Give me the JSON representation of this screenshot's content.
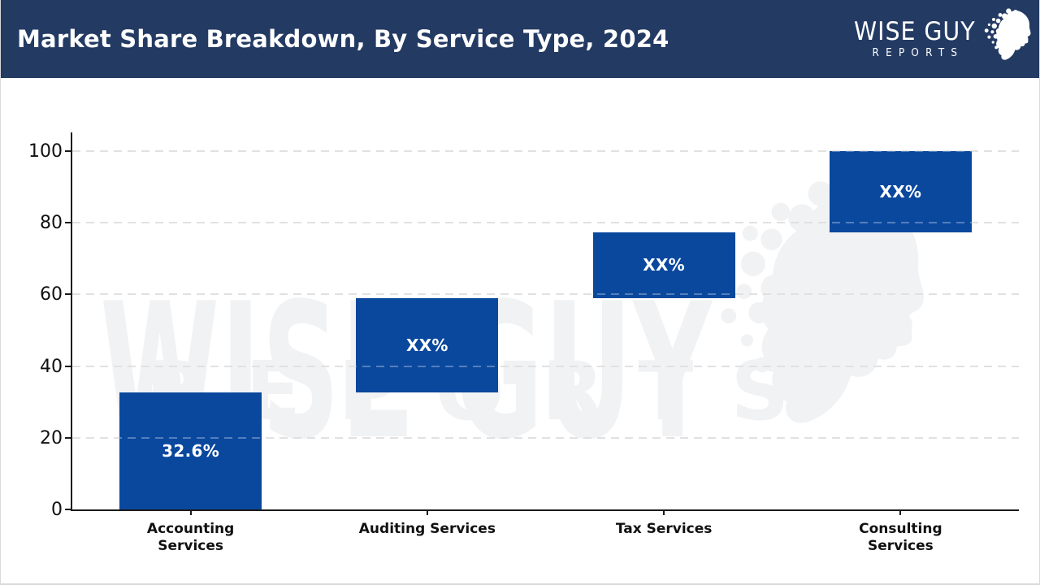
{
  "header": {
    "title": "Market Share Breakdown, By Service Type, 2024",
    "logo": {
      "name": "WISE GUY",
      "sub": "REPORTS"
    }
  },
  "watermark": {
    "line1": "WISE GUY",
    "line2": "REPORTS"
  },
  "colors": {
    "header_bg": "#233a63",
    "bar": "#0a489e",
    "bar_label": "#ffffff",
    "grid": "#d4d4d4",
    "grid_over_bar": "rgba(255,255,255,0.30)",
    "axis": "#1a1a1a",
    "watermark": "#f1f2f4"
  },
  "chart_data": {
    "type": "bar",
    "subtype": "waterfall",
    "title": "Market Share Breakdown, By Service Type, 2024",
    "categories": [
      "Accounting Services",
      "Auditing Services",
      "Tax Services",
      "Consulting Services"
    ],
    "category_lines": [
      [
        "Accounting",
        "Services"
      ],
      [
        "Auditing Services"
      ],
      [
        "Tax Services"
      ],
      [
        "Consulting",
        "Services"
      ]
    ],
    "segments": [
      {
        "category": "Accounting Services",
        "start": 0,
        "end": 32.6,
        "label": "32.6%"
      },
      {
        "category": "Auditing Services",
        "start": 32.6,
        "end": 59.0,
        "label": "XX%"
      },
      {
        "category": "Tax Services",
        "start": 59.0,
        "end": 77.4,
        "label": "XX%"
      },
      {
        "category": "Consulting Services",
        "start": 77.4,
        "end": 100,
        "label": "XX%"
      }
    ],
    "yticks": [
      0,
      20,
      40,
      60,
      80,
      100
    ],
    "ylim": [
      0,
      105
    ],
    "xlabel": "",
    "ylabel": "",
    "grid": "dashed-horizontal",
    "legend": "none"
  }
}
